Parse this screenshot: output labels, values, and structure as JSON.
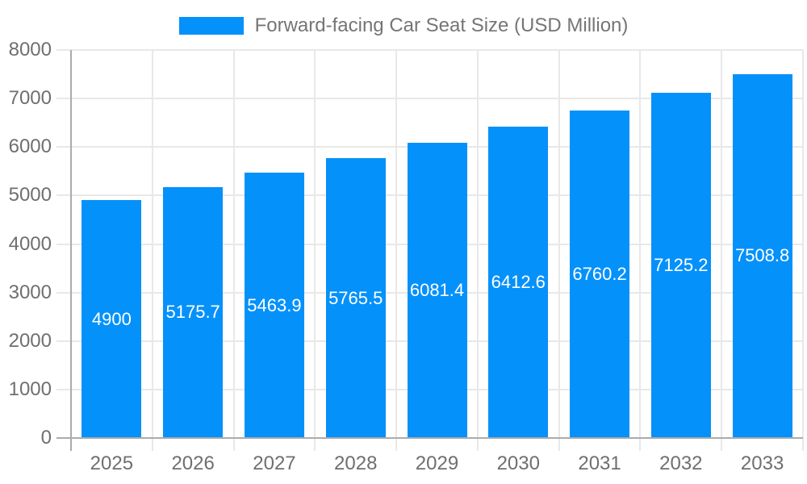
{
  "legend": {
    "label": "Forward-facing Car Seat Size (USD Million)"
  },
  "chart_data": {
    "type": "bar",
    "title": "Forward-facing Car Seat Size (USD Million)",
    "categories": [
      "2025",
      "2026",
      "2027",
      "2028",
      "2029",
      "2030",
      "2031",
      "2032",
      "2033"
    ],
    "values": [
      4900,
      5175.7,
      5463.9,
      5765.5,
      6081.4,
      6412.6,
      6760.2,
      7125.2,
      7508.8
    ],
    "bar_labels": [
      "4900",
      "5175.7",
      "5463.9",
      "5765.5",
      "6081.4",
      "6412.6",
      "6760.2",
      "7125.2",
      "7508.8"
    ],
    "xlabel": "",
    "ylabel": "",
    "ylim": [
      0,
      8000
    ],
    "ytick_step": 1000,
    "yticks": [
      0,
      1000,
      2000,
      3000,
      4000,
      5000,
      6000,
      7000,
      8000
    ],
    "grid": true,
    "legend_position": "top",
    "colors": {
      "bar": "#0591FA",
      "grid": "#E8E8E8",
      "axis": "#ABABAB",
      "tick_label": "#6F6F6F",
      "legend_label": "#757575",
      "bar_label": "#FFFFFF",
      "background": "#FFFFFF"
    }
  }
}
